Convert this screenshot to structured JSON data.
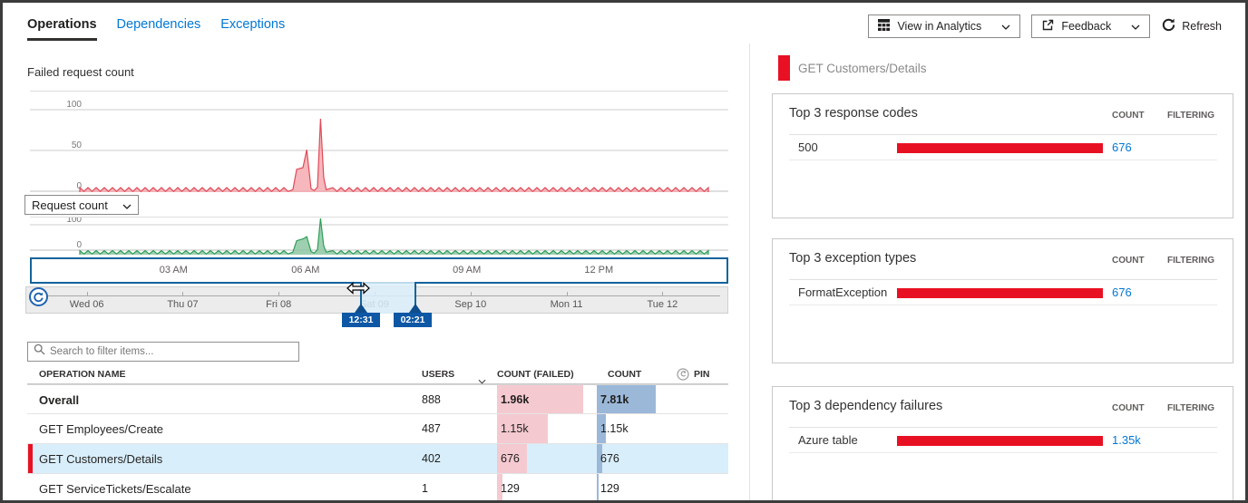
{
  "tabs": [
    {
      "label": "Operations",
      "active": true
    },
    {
      "label": "Dependencies",
      "active": false
    },
    {
      "label": "Exceptions",
      "active": false
    }
  ],
  "toolbar": {
    "view_analytics_label": "View in Analytics",
    "feedback_label": "Feedback",
    "refresh_label": "Refresh"
  },
  "left": {
    "failed_chart_title": "Failed request count",
    "metric_dropdown_value": "Request count",
    "time_axis_labels": [
      "03 AM",
      "06 AM",
      "09 AM",
      "12 PM"
    ],
    "slider": {
      "dates": [
        "Wed 06",
        "Thu 07",
        "Fri 08",
        "Sat 09",
        "Sep 10",
        "Mon 11",
        "Tue 12"
      ],
      "handle_start": "12:31",
      "handle_end": "02:21"
    },
    "search_placeholder": "Search to filter items...",
    "table": {
      "headers": {
        "name": "OPERATION NAME",
        "users": "USERS",
        "failed": "COUNT (FAILED)",
        "count": "COUNT",
        "pin": "PIN"
      },
      "rows": [
        {
          "name": "Overall",
          "users": "888",
          "failed": "1.96k",
          "failed_value": 1960,
          "count": "7.81k",
          "count_value": 7810,
          "bold": true,
          "selected": false
        },
        {
          "name": "GET Employees/Create",
          "users": "487",
          "failed": "1.15k",
          "failed_value": 1150,
          "count": "1.15k",
          "count_value": 1150,
          "bold": false,
          "selected": false
        },
        {
          "name": "GET Customers/Details",
          "users": "402",
          "failed": "676",
          "failed_value": 676,
          "count": "676",
          "count_value": 676,
          "bold": false,
          "selected": true
        },
        {
          "name": "GET ServiceTickets/Escalate",
          "users": "1",
          "failed": "129",
          "failed_value": 129,
          "count": "129",
          "count_value": 129,
          "bold": false,
          "selected": false
        }
      ]
    }
  },
  "right": {
    "legend_label": "GET Customers/Details",
    "cards": [
      {
        "title": "Top 3 response codes",
        "count_header": "COUNT",
        "filtering_header": "FILTERING",
        "rows": [
          {
            "label": "500",
            "count": "676",
            "count_value": 676,
            "frac": 1
          }
        ]
      },
      {
        "title": "Top 3 exception types",
        "count_header": "COUNT",
        "filtering_header": "FILTERING",
        "rows": [
          {
            "label": "FormatException",
            "count": "676",
            "count_value": 676,
            "frac": 1
          }
        ]
      },
      {
        "title": "Top 3 dependency failures",
        "count_header": "COUNT",
        "filtering_header": "FILTERING",
        "rows": [
          {
            "label": "Azure table",
            "count": "1.35k",
            "count_value": 1350,
            "frac": 1
          }
        ]
      }
    ]
  },
  "chart_data": [
    {
      "id": "failed",
      "type": "area",
      "title": "Failed request count",
      "ylim": [
        0,
        100
      ],
      "yticks": [
        0,
        50,
        100
      ],
      "x_ticks": [
        "03 AM",
        "06 AM",
        "09 AM",
        "12 PM"
      ],
      "stroke": "#e04a57",
      "fill": "#f4aab2",
      "baseline": "noisy oscillation between 0 and ~6 failed requests across the whole range",
      "spike_anchors": [
        [
          0.339,
          3
        ],
        [
          0.345,
          28
        ],
        [
          0.355,
          30
        ],
        [
          0.361,
          52
        ],
        [
          0.368,
          4
        ],
        [
          0.373,
          2
        ],
        [
          0.378,
          6
        ],
        [
          0.383,
          90
        ],
        [
          0.388,
          18
        ],
        [
          0.392,
          3
        ]
      ]
    },
    {
      "id": "request",
      "type": "area",
      "title": "Request count",
      "ylim": [
        0,
        100
      ],
      "yticks": [
        0,
        100
      ],
      "x_ticks": [
        "03 AM",
        "06 AM",
        "09 AM",
        "12 PM"
      ],
      "stroke": "#2f9e58",
      "fill": "#8cc7a2",
      "baseline": "noisy oscillation between 0 and ~15 requests across the whole range",
      "spike_anchors": [
        [
          0.339,
          10
        ],
        [
          0.345,
          55
        ],
        [
          0.355,
          62
        ],
        [
          0.361,
          71
        ],
        [
          0.368,
          12
        ],
        [
          0.373,
          6
        ],
        [
          0.378,
          20
        ],
        [
          0.383,
          143
        ],
        [
          0.388,
          35
        ],
        [
          0.392,
          10
        ]
      ]
    }
  ],
  "colors": {
    "accent_blue": "#0078d4",
    "alert_red": "#e81123",
    "chart_red_stroke": "#e04a57",
    "chart_green_stroke": "#2f9e58",
    "selection_blue": "#15639c",
    "handle_blue": "#0d57a5",
    "failed_bar_pink": "#f4c9d0",
    "count_bar_blue": "#9bb8d9",
    "selected_row_bg": "#d8eefb"
  }
}
